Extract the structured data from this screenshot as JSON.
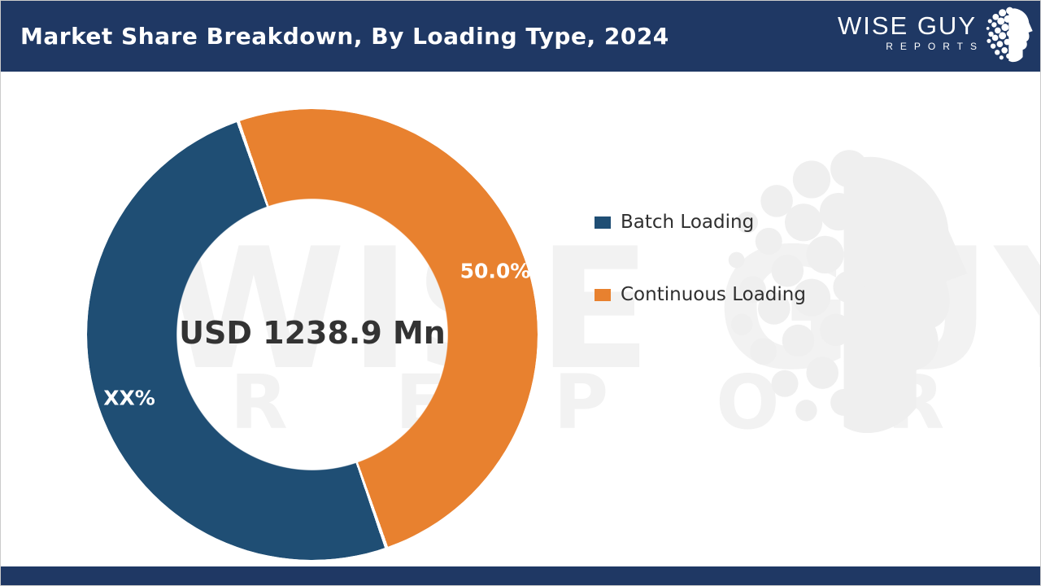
{
  "header": {
    "title": "Market Share Breakdown, By Loading Type, 2024",
    "bg_color": "#1f3864",
    "logo_line1": "WISE GUY",
    "logo_line2": "REPORTS"
  },
  "footer": {
    "bg_color": "#1f3864"
  },
  "watermark": {
    "line1": "WISE GUY",
    "line2": "R E P O R T S"
  },
  "chart_data": {
    "type": "pie",
    "subtype": "donut",
    "title": "Market Share Breakdown, By Loading Type, 2024",
    "center_label": "USD 1238.9 Mn",
    "slices": [
      {
        "label": "Batch Loading",
        "value": 50.0,
        "display_label": "XX%",
        "color": "#1f4e74"
      },
      {
        "label": "Continuous Loading",
        "value": 50.0,
        "display_label": "50.0%",
        "color": "#e8812f"
      }
    ],
    "direction": "counterclockwise",
    "start_angle_clock_deg": -19.2,
    "inner_radius_ratio": 0.6,
    "label_radius_ratio": 0.86,
    "slice_gap_deg": 0.9,
    "label_color": "#ffffff",
    "legend_position": "right",
    "grid": false
  }
}
